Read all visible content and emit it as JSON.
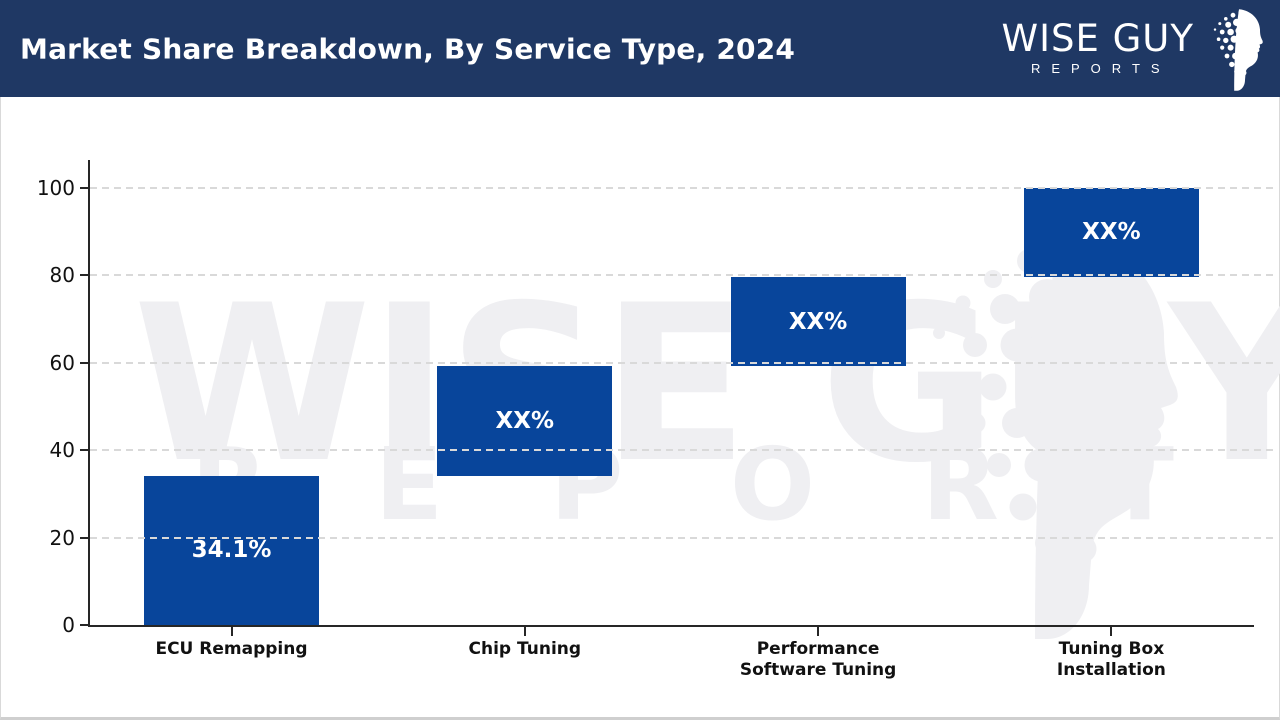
{
  "header": {
    "title": "Market Share Breakdown, By Service Type, 2024",
    "logo": {
      "line1": "WISE GUY",
      "line2": "REPORTS"
    }
  },
  "watermark": {
    "line1": "WISE GUY",
    "line2": "R E P O R T S"
  },
  "colors": {
    "header_bg": "#1F3864",
    "bar": "#08459B",
    "bar_label": "#FFFFFF",
    "grid": "#D9D9D9",
    "axis": "#262626",
    "watermark": "#EFEFF2"
  },
  "chart_data": {
    "type": "bar",
    "subtype": "waterfall",
    "title": "Market Share Breakdown, By Service Type, 2024",
    "categories": [
      {
        "lines": [
          "ECU Remapping"
        ]
      },
      {
        "lines": [
          "Chip Tuning"
        ]
      },
      {
        "lines": [
          "Performance",
          "Software Tuning"
        ]
      },
      {
        "lines": [
          "Tuning Box",
          "Installation"
        ]
      }
    ],
    "segments": [
      {
        "start": 0,
        "end": 34.1,
        "label": "34.1%"
      },
      {
        "start": 34.1,
        "end": 59.2,
        "label": "XX%"
      },
      {
        "start": 59.2,
        "end": 79.5,
        "label": "XX%"
      },
      {
        "start": 79.5,
        "end": 100,
        "label": "XX%"
      }
    ],
    "xlabel": "",
    "ylabel": "",
    "ylim": [
      0,
      100
    ],
    "yticks": [
      0,
      20,
      40,
      60,
      80,
      100
    ],
    "grid": "horizontal-dashed",
    "legend": "none"
  }
}
